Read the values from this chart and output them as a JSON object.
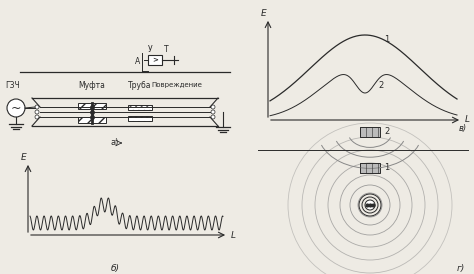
{
  "bg_color": "#eeebe4",
  "line_color": "#2a2a2a",
  "gray_color": "#999999",
  "label_a": "а)",
  "label_b": "б)",
  "label_v": "в)",
  "label_g": "г)",
  "label_gzch": "ГЗЧ",
  "label_mufta": "Муфта",
  "label_truba": "Труба",
  "label_povrezhdenie": "Повреждение",
  "label_E": "E",
  "label_L": "L",
  "label_Y": "У",
  "label_T": "Т",
  "label_A": "А",
  "label_1": "1",
  "label_2": "2"
}
